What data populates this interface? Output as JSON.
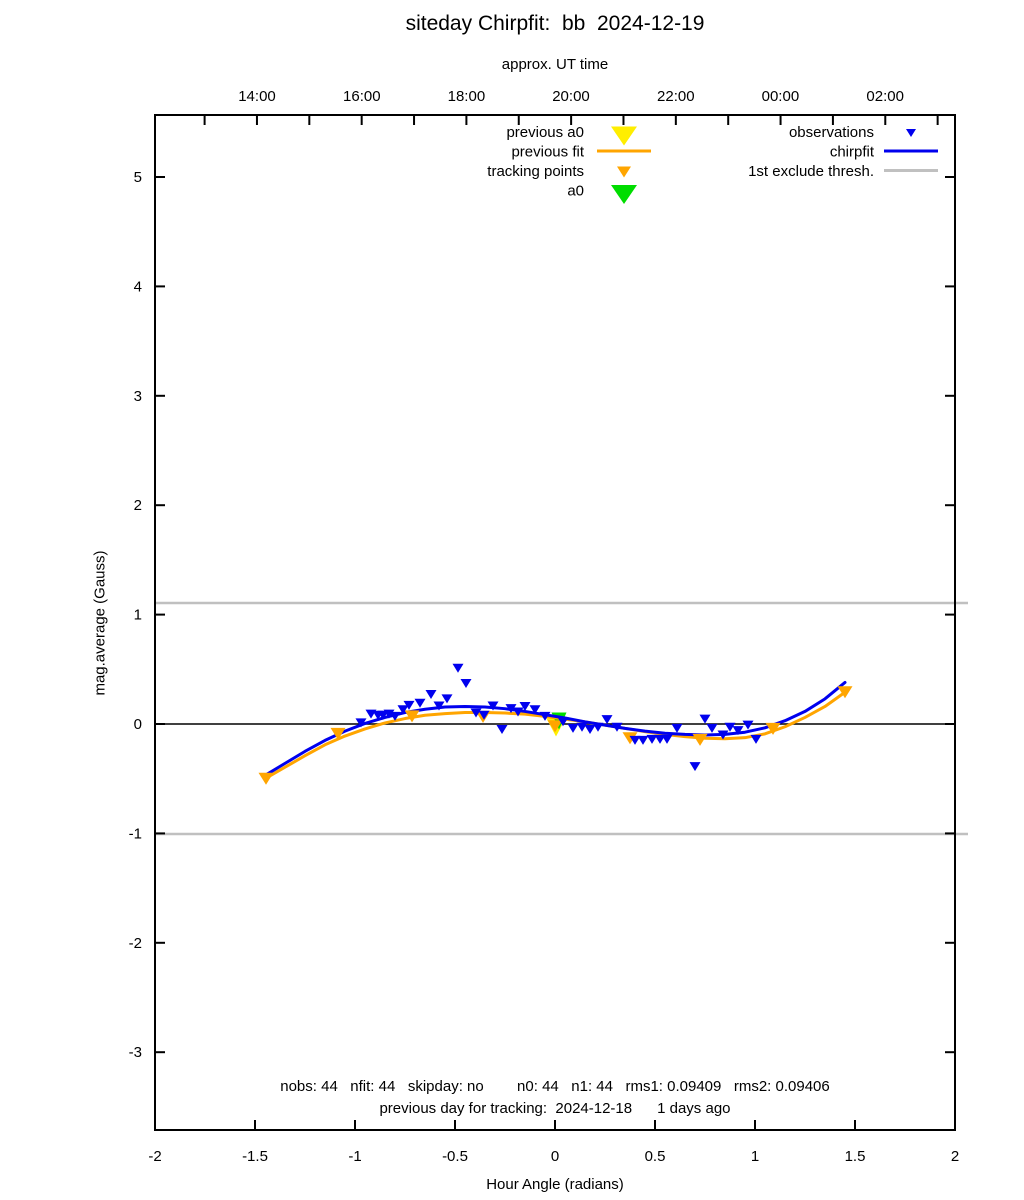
{
  "title": "siteday Chirpfit:  bb  2024-12-19",
  "chart_data": {
    "type": "line",
    "title": "siteday Chirpfit:  bb  2024-12-19",
    "x2label": "approx. UT time",
    "xlabel": "Hour Angle (radians)",
    "ylabel": "mag.average (Gauss)",
    "xlim": [
      -2,
      2
    ],
    "ylim": [
      -3.71,
      5.57
    ],
    "grid": false,
    "x_ticks": [
      -2,
      -1.5,
      -1,
      -0.5,
      0,
      0.5,
      1,
      1.5,
      2
    ],
    "x_tick_labels": [
      "-2",
      "-1.5",
      "-1",
      "-0.5",
      "0",
      "0.5",
      "1",
      "1.5",
      "2"
    ],
    "y_ticks": [
      5,
      4,
      3,
      2,
      1,
      0,
      -1,
      -2,
      -3
    ],
    "y_tick_labels": [
      "5",
      "4",
      "3",
      "2",
      "1",
      "0",
      "-1",
      "-2",
      "-3"
    ],
    "x2_ticks": [
      {
        "label": "14:00",
        "x": -1.49
      },
      {
        "label": "16:00",
        "x": -0.966
      },
      {
        "label": "18:00",
        "x": -0.443
      },
      {
        "label": "20:00",
        "x": 0.08
      },
      {
        "label": "22:00",
        "x": 0.604
      },
      {
        "label": "00:00",
        "x": 1.127
      },
      {
        "label": "02:00",
        "x": 1.651
      }
    ],
    "x2_minor_start": -1.752,
    "x2_minor_step": 0.2618,
    "x2_minor_count": 15,
    "hlines": [
      {
        "name": "zero-line",
        "y": 0,
        "color": "#000000",
        "width": 1.6,
        "overhang": 0
      },
      {
        "name": "exclude-threshold-upper",
        "y": 1.106,
        "color": "#c0c0c0",
        "width": 2.5,
        "overhang": 13
      },
      {
        "name": "exclude-threshold-lower",
        "y": -1.005,
        "color": "#c0c0c0",
        "width": 2.5,
        "overhang": 13
      }
    ],
    "series": [
      {
        "name": "previous a0",
        "type": "scatter",
        "marker": "triangle-down",
        "color": "#ffee00",
        "marker_size": [
          19,
          18
        ],
        "points": [
          [
            0.005,
            -0.032
          ]
        ]
      },
      {
        "name": "a0",
        "type": "scatter",
        "marker": "triangle-down",
        "color": "#00dd00",
        "marker_size": [
          15,
          17
        ],
        "points": [
          [
            0.02,
            0.027
          ]
        ]
      },
      {
        "name": "previous fit",
        "type": "line",
        "color": "#ffa500",
        "line_width": 3,
        "points": [
          [
            -1.45,
            -0.5
          ],
          [
            -1.35,
            -0.395
          ],
          [
            -1.25,
            -0.29
          ],
          [
            -1.15,
            -0.19
          ],
          [
            -1.05,
            -0.11
          ],
          [
            -0.95,
            -0.045
          ],
          [
            -0.85,
            0.01
          ],
          [
            -0.75,
            0.05
          ],
          [
            -0.65,
            0.08
          ],
          [
            -0.55,
            0.095
          ],
          [
            -0.45,
            0.105
          ],
          [
            -0.35,
            0.105
          ],
          [
            -0.25,
            0.1
          ],
          [
            -0.15,
            0.09
          ],
          [
            -0.05,
            0.07
          ],
          [
            0.05,
            0.045
          ],
          [
            0.15,
            0.02
          ],
          [
            0.25,
            -0.01
          ],
          [
            0.35,
            -0.04
          ],
          [
            0.45,
            -0.07
          ],
          [
            0.55,
            -0.095
          ],
          [
            0.65,
            -0.115
          ],
          [
            0.75,
            -0.13
          ],
          [
            0.85,
            -0.135
          ],
          [
            0.95,
            -0.125
          ],
          [
            1.05,
            -0.09
          ],
          [
            1.15,
            -0.025
          ],
          [
            1.25,
            0.06
          ],
          [
            1.35,
            0.16
          ],
          [
            1.45,
            0.29
          ]
        ]
      },
      {
        "name": "chirpfit",
        "type": "line",
        "color": "#0000ee",
        "line_width": 3,
        "points": [
          [
            -1.45,
            -0.47
          ],
          [
            -1.35,
            -0.36
          ],
          [
            -1.25,
            -0.25
          ],
          [
            -1.15,
            -0.15
          ],
          [
            -1.05,
            -0.065
          ],
          [
            -0.95,
            0.005
          ],
          [
            -0.85,
            0.06
          ],
          [
            -0.75,
            0.105
          ],
          [
            -0.65,
            0.135
          ],
          [
            -0.55,
            0.155
          ],
          [
            -0.45,
            0.16
          ],
          [
            -0.35,
            0.155
          ],
          [
            -0.25,
            0.14
          ],
          [
            -0.15,
            0.115
          ],
          [
            -0.05,
            0.085
          ],
          [
            0.05,
            0.055
          ],
          [
            0.15,
            0.02
          ],
          [
            0.25,
            -0.01
          ],
          [
            0.35,
            -0.04
          ],
          [
            0.45,
            -0.065
          ],
          [
            0.55,
            -0.085
          ],
          [
            0.65,
            -0.095
          ],
          [
            0.75,
            -0.1
          ],
          [
            0.85,
            -0.095
          ],
          [
            0.95,
            -0.075
          ],
          [
            1.05,
            -0.035
          ],
          [
            1.15,
            0.03
          ],
          [
            1.25,
            0.115
          ],
          [
            1.35,
            0.23
          ],
          [
            1.45,
            0.38
          ]
        ]
      },
      {
        "name": "tracking points",
        "type": "scatter",
        "marker": "triangle-down",
        "color": "#ffa500",
        "marker_size": [
          15,
          12
        ],
        "points": [
          [
            -1.445,
            -0.5
          ],
          [
            -1.085,
            -0.09
          ],
          [
            -0.715,
            0.07
          ],
          [
            -0.36,
            0.065
          ],
          [
            0.0,
            -0.02
          ],
          [
            0.375,
            -0.13
          ],
          [
            0.725,
            -0.145
          ],
          [
            1.09,
            -0.045
          ],
          [
            1.45,
            0.29
          ]
        ]
      },
      {
        "name": "observations",
        "type": "scatter",
        "marker": "triangle-down",
        "color": "#0000ee",
        "marker_size": [
          11,
          9
        ],
        "points": [
          [
            -0.97,
            0.01
          ],
          [
            -0.92,
            0.09
          ],
          [
            -0.885,
            0.08
          ],
          [
            -0.86,
            0.08
          ],
          [
            -0.83,
            0.09
          ],
          [
            -0.8,
            0.07
          ],
          [
            -0.76,
            0.13
          ],
          [
            -0.73,
            0.17
          ],
          [
            -0.675,
            0.19
          ],
          [
            -0.62,
            0.27
          ],
          [
            -0.58,
            0.165
          ],
          [
            -0.54,
            0.23
          ],
          [
            -0.485,
            0.51
          ],
          [
            -0.445,
            0.37
          ],
          [
            -0.395,
            0.1
          ],
          [
            -0.355,
            0.08
          ],
          [
            -0.31,
            0.165
          ],
          [
            -0.265,
            -0.05
          ],
          [
            -0.22,
            0.14
          ],
          [
            -0.185,
            0.11
          ],
          [
            -0.15,
            0.16
          ],
          [
            -0.1,
            0.13
          ],
          [
            -0.05,
            0.07
          ],
          [
            0.04,
            0.02
          ],
          [
            0.09,
            -0.04
          ],
          [
            0.135,
            -0.03
          ],
          [
            0.175,
            -0.05
          ],
          [
            0.215,
            -0.03
          ],
          [
            0.26,
            0.04
          ],
          [
            0.31,
            -0.03
          ],
          [
            0.4,
            -0.15
          ],
          [
            0.44,
            -0.15
          ],
          [
            0.485,
            -0.14
          ],
          [
            0.525,
            -0.14
          ],
          [
            0.56,
            -0.14
          ],
          [
            0.61,
            -0.04
          ],
          [
            0.7,
            -0.39
          ],
          [
            0.75,
            0.045
          ],
          [
            0.785,
            -0.04
          ],
          [
            0.84,
            -0.1
          ],
          [
            0.875,
            -0.03
          ],
          [
            0.915,
            -0.06
          ],
          [
            0.965,
            -0.01
          ],
          [
            1.005,
            -0.14
          ]
        ]
      }
    ],
    "legend": {
      "left": [
        {
          "label": "previous a0",
          "marker": "triangle",
          "color": "#ffee00",
          "w": 26,
          "h": 19
        },
        {
          "label": "previous fit",
          "marker": "line",
          "color": "#ffa500"
        },
        {
          "label": "tracking points",
          "marker": "triangle",
          "color": "#ffa500",
          "w": 14,
          "h": 11
        },
        {
          "label": "a0",
          "marker": "triangle",
          "color": "#00dd00",
          "w": 26,
          "h": 19
        }
      ],
      "right": [
        {
          "label": "observations",
          "marker": "triangle",
          "color": "#0000ee",
          "w": 10,
          "h": 8
        },
        {
          "label": "chirpfit",
          "marker": "line",
          "color": "#0000ee"
        },
        {
          "label": "1st exclude thresh.",
          "marker": "line",
          "color": "#c0c0c0"
        }
      ]
    },
    "caption_line1": "nobs: 44   nfit: 44   skipday: no        n0: 44   n1: 44   rms1: 0.09409   rms2: 0.09406",
    "caption_line2": "previous day for tracking:  2024-12-18      1 days ago",
    "stats": {
      "nobs": 44,
      "nfit": 44,
      "skipday": "no",
      "n0": 44,
      "n1": 44,
      "rms1": 0.09409,
      "rms2": 0.09406,
      "previous_day_for_tracking": "2024-12-18",
      "days_ago": 1
    }
  }
}
